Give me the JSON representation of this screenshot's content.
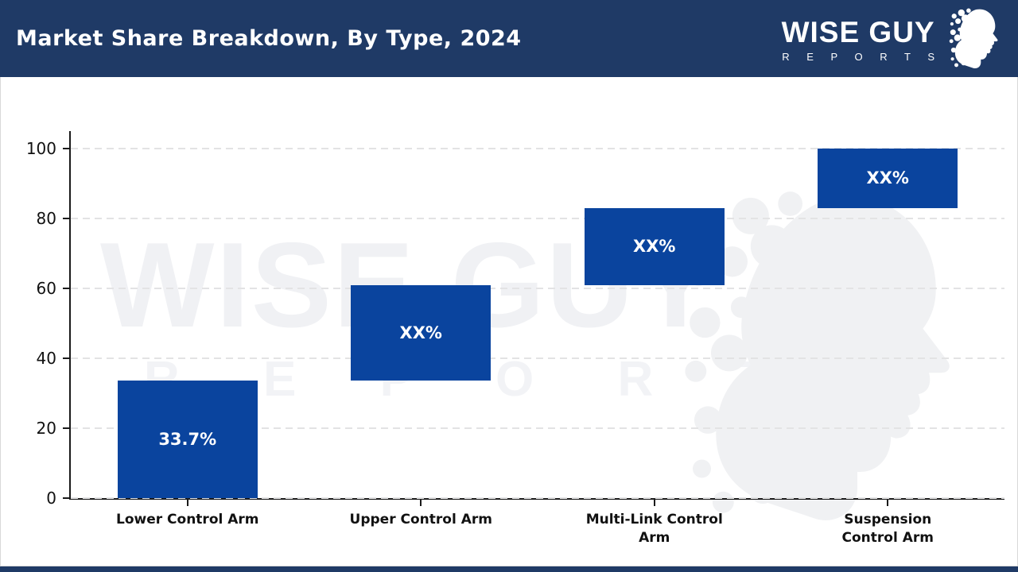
{
  "header": {
    "title": "Market Share Breakdown, By Type, 2024",
    "brand": {
      "line1": "WISE GUY",
      "line2": "R E P O R T S"
    }
  },
  "watermark": {
    "line1": "WISE GUY",
    "line2": "R E P O R T S"
  },
  "colors": {
    "header_navy": "#1f3a66",
    "bar_blue": "#0a449e",
    "bar_label_white": "#ffffff",
    "gridline_gray": "#e3e3e4",
    "watermark_gray": "#f0f1f4"
  },
  "chart_data": {
    "type": "bar",
    "variant": "waterfall-floating-bars",
    "title": "Market Share Breakdown, By Type, 2024",
    "categories": [
      "Lower Control Arm",
      "Upper Control Arm",
      "Multi-Link Control Arm",
      "Suspension Control Arm"
    ],
    "bars": [
      {
        "category": "Lower Control Arm",
        "start": 0,
        "end": 33.7,
        "label": "33.7%"
      },
      {
        "category": "Upper Control Arm",
        "start": 33.7,
        "end": 61,
        "label": "XX%"
      },
      {
        "category": "Multi-Link Control Arm",
        "start": 61,
        "end": 83,
        "label": "XX%"
      },
      {
        "category": "Suspension Control Arm",
        "start": 83,
        "end": 100,
        "label": "XX%"
      }
    ],
    "xlabel": "",
    "ylabel": "",
    "yticks": [
      0,
      20,
      40,
      60,
      80,
      100
    ],
    "ylim": [
      0,
      105
    ],
    "grid": "horizontal-dashed",
    "legend": "none"
  }
}
